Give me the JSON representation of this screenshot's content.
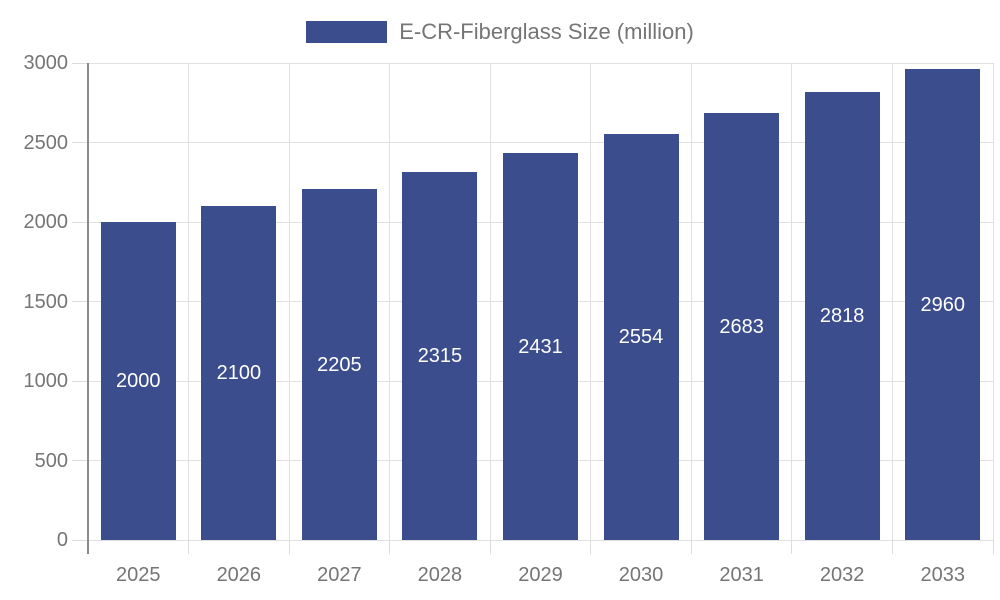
{
  "legend": {
    "label": "E-CR-Fiberglass Size (million)"
  },
  "chart_data": {
    "type": "bar",
    "title": "E-CR-Fiberglass Size (million)",
    "categories": [
      "2025",
      "2026",
      "2027",
      "2028",
      "2029",
      "2030",
      "2031",
      "2032",
      "2033"
    ],
    "series": [
      {
        "name": "E-CR-Fiberglass Size (million)",
        "values": [
          2000,
          2100,
          2205,
          2315,
          2431,
          2554,
          2683,
          2818,
          2960
        ]
      }
    ],
    "xlabel": "",
    "ylabel": "",
    "ylim": [
      0,
      3000
    ],
    "yticks": [
      0,
      500,
      1000,
      1500,
      2000,
      2500,
      3000
    ],
    "grid": true,
    "legend_position": "top",
    "value_labels": "inside-center",
    "colors": {
      "bar": "#3B4D8C",
      "grid_line": "#E0E0E0",
      "axis_line": "#8A8A8A",
      "tick_line": "#DCDCDC",
      "tick_label": "#757575",
      "value_label": "#FFFFFF",
      "background": "#FFFFFF"
    }
  }
}
